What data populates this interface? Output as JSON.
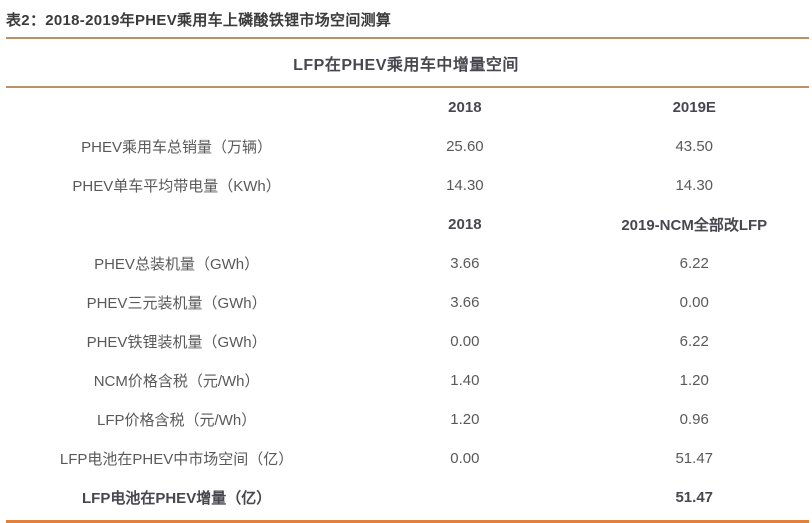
{
  "doc": {
    "title": "表2：2018-2019年PHEV乘用车上磷酸铁锂市场空间测算"
  },
  "table": {
    "section_header": "LFP在PHEV乘用车中增量空间",
    "rows": [
      {
        "label": "",
        "col2018": "2018",
        "col2019": "2019E"
      },
      {
        "label": "PHEV乘用车总销量（万辆）",
        "col2018": "25.60",
        "col2019": "43.50"
      },
      {
        "label": "PHEV单车平均带电量（KWh）",
        "col2018": "14.30",
        "col2019": "14.30"
      },
      {
        "label": "",
        "col2018": "2018",
        "col2019": "2019-NCM全部改LFP"
      },
      {
        "label": "PHEV总装机量（GWh）",
        "col2018": "3.66",
        "col2019": "6.22"
      },
      {
        "label": "PHEV三元装机量（GWh）",
        "col2018": "3.66",
        "col2019": "0.00"
      },
      {
        "label": "PHEV铁锂装机量（GWh）",
        "col2018": "0.00",
        "col2019": "6.22"
      },
      {
        "label": "NCM价格含税（元/Wh）",
        "col2018": "1.40",
        "col2019": "1.20"
      },
      {
        "label": "LFP价格含税（元/Wh）",
        "col2018": "1.20",
        "col2019": "0.96"
      },
      {
        "label": "LFP电池在PHEV中市场空间（亿）",
        "col2018": "0.00",
        "col2019": "51.47"
      },
      {
        "label": "LFP电池在PHEV增量（亿）",
        "col2018": "",
        "col2019": "51.47"
      }
    ]
  },
  "colors": {
    "rule_tan": "#bd9166",
    "rule_orange": "#e2813c",
    "title_text": "#3b3b3b",
    "header_text": "#47474f",
    "body_text": "#595959"
  }
}
